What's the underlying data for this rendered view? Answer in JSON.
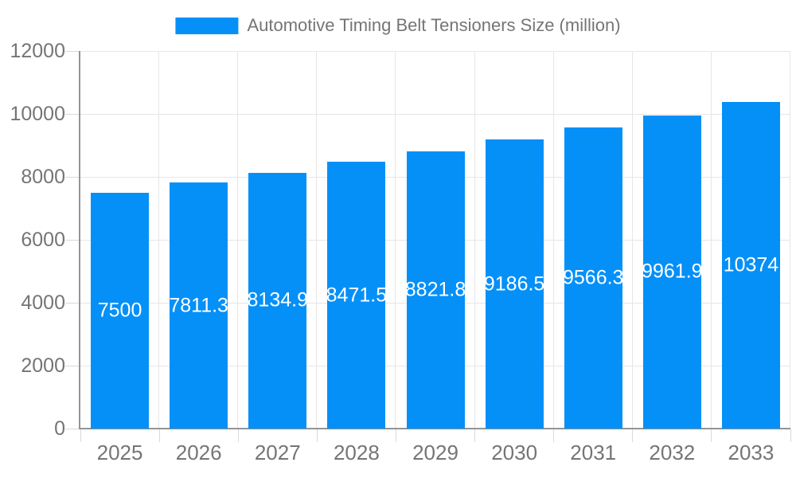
{
  "chart_data": {
    "type": "bar",
    "categories": [
      "2025",
      "2026",
      "2027",
      "2028",
      "2029",
      "2030",
      "2031",
      "2032",
      "2033"
    ],
    "series": [
      {
        "name": "Automotive Timing Belt Tensioners Size (million)",
        "values": [
          7500,
          7811.3,
          8134.9,
          8471.5,
          8821.8,
          9186.5,
          9566.3,
          9961.9,
          10374
        ],
        "labels": [
          "7500",
          "7811.3",
          "8134.9",
          "8471.5",
          "8821.8",
          "9186.5",
          "9566.3",
          "9961.9",
          "10374"
        ]
      }
    ],
    "xlabel": "",
    "ylabel": "",
    "ylim": [
      0,
      12000
    ],
    "y_ticks": [
      0,
      2000,
      4000,
      6000,
      8000,
      10000,
      12000
    ],
    "grid": true,
    "legend_position": "top",
    "colors": {
      "bar": "#0590f8",
      "axis_text": "#757575",
      "bar_label_text": "#ffffff",
      "gridline": "#e6e6e6",
      "tick": "#d9d9d9",
      "axis_line": "#949494",
      "background": "#ffffff"
    }
  }
}
